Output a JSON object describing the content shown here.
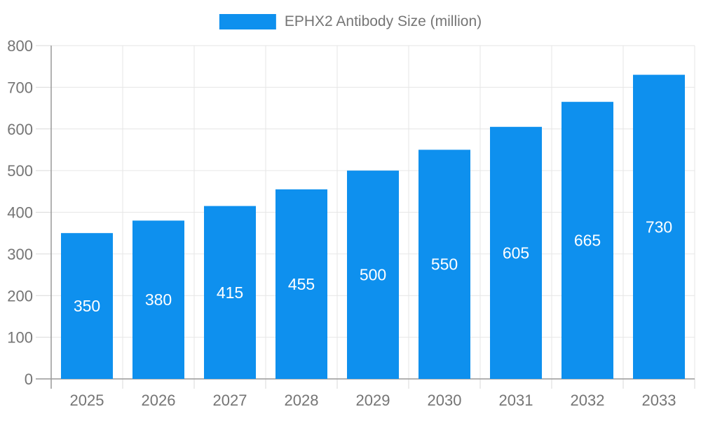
{
  "legend": {
    "label": "EPHX2 Antibody Size (million)"
  },
  "colors": {
    "bar": "#0e90ee",
    "axis": "#999999",
    "grid": "#e6e6e6",
    "tick": "#d9d9d9",
    "label": "#757575",
    "value_label": "#ffffff",
    "background": "#ffffff"
  },
  "chart_data": {
    "type": "bar",
    "title": "EPHX2 Antibody Size (million)",
    "categories": [
      "2025",
      "2026",
      "2027",
      "2028",
      "2029",
      "2030",
      "2031",
      "2032",
      "2033"
    ],
    "series": [
      {
        "name": "EPHX2 Antibody Size (million)",
        "values": [
          350,
          380,
          415,
          455,
          500,
          550,
          605,
          665,
          730
        ],
        "color": "#0e90ee"
      }
    ],
    "xlabel": "",
    "ylabel": "",
    "ylim": [
      0,
      800
    ],
    "yticks": [
      0,
      100,
      200,
      300,
      400,
      500,
      600,
      700,
      800
    ],
    "grid": true,
    "legend_position": "top-center",
    "value_label_position": "inside-center",
    "value_label_color": "#ffffff"
  }
}
